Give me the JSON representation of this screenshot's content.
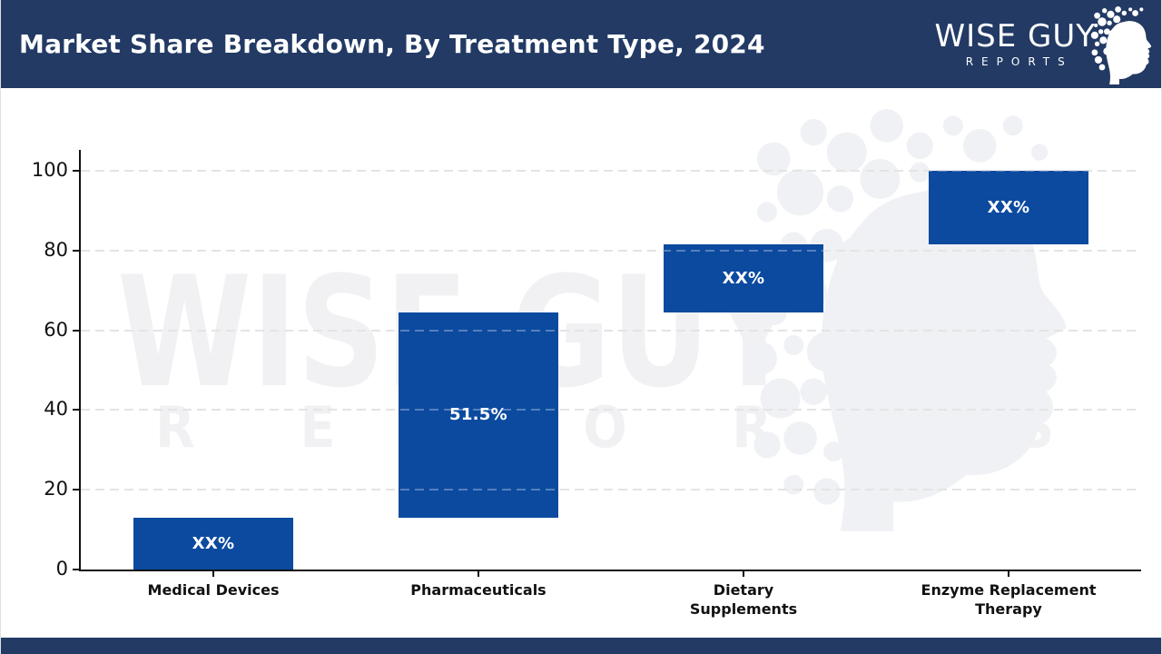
{
  "header": {
    "title": "Market Share Breakdown, By Treatment Type, 2024",
    "logo": {
      "line1": "WISE GUY",
      "line2": "REPORTS",
      "icon": "dotted-face-profile-icon"
    }
  },
  "watermark": {
    "line1": "WISE GUY",
    "line2": "R E P O R T S",
    "icon": "dotted-face-profile-icon"
  },
  "colors": {
    "header_navy": "#223A64",
    "footer_navy": "#223A64",
    "bar_blue": "#0B4A9F",
    "gridline_gray": "#D9D9D9",
    "watermark_gray": "#F1F1F4",
    "axis_black": "#111111"
  },
  "chart_data": {
    "type": "bar",
    "subtype": "waterfall-floating-bars",
    "title": "Market Share Breakdown, By Treatment Type, 2024",
    "categories": [
      "Medical Devices",
      "Pharmaceuticals",
      "Dietary\nSupplements",
      "Enzyme Replacement\nTherapy"
    ],
    "segments": [
      {
        "category": "Medical Devices",
        "start": 0,
        "end": 13,
        "label": "XX%"
      },
      {
        "category": "Pharmaceuticals",
        "start": 13,
        "end": 64.5,
        "label": "51.5%"
      },
      {
        "category": "Dietary Supplements",
        "start": 64.5,
        "end": 81.5,
        "label": "XX%"
      },
      {
        "category": "Enzyme Replacement Therapy",
        "start": 81.5,
        "end": 100,
        "label": "XX%"
      }
    ],
    "values": [
      13,
      51.5,
      17,
      18.5
    ],
    "xlabel": "",
    "ylabel": "",
    "ylim": [
      0,
      100
    ],
    "y_ticks": [
      0,
      20,
      40,
      60,
      80,
      100
    ],
    "grid": "dashed-horizontal",
    "legend": "none"
  }
}
